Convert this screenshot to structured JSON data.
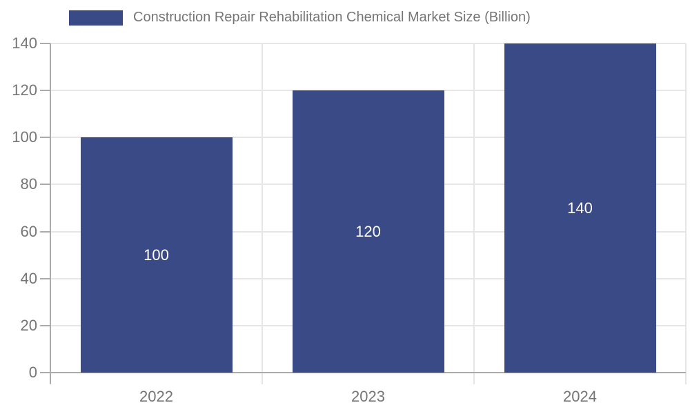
{
  "legend": {
    "label": "Construction Repair Rehabilitation Chemical Market Size (Billion)"
  },
  "chart_data": {
    "type": "bar",
    "title": "Construction Repair Rehabilitation Chemical Market Size (Billion)",
    "categories": [
      "2022",
      "2023",
      "2024"
    ],
    "series": [
      {
        "name": "Construction Repair Rehabilitation Chemical Market Size (Billion)",
        "values": [
          100,
          120,
          140
        ]
      }
    ],
    "data_labels": [
      "100",
      "120",
      "140"
    ],
    "xlabel": "",
    "ylabel": "",
    "ylim": [
      0,
      140
    ],
    "yticks": [
      0,
      20,
      40,
      60,
      80,
      100,
      120,
      140
    ],
    "grid": true,
    "legend_position": "top-center",
    "colors": {
      "bar": "#3A4A87",
      "bar_value_label": "#FFFFFF",
      "axis_line": "#ABABAB",
      "gridline": "#E6E6E6",
      "tick_label": "#757575",
      "legend_text": "#757575",
      "background": "#FFFFFF"
    }
  }
}
